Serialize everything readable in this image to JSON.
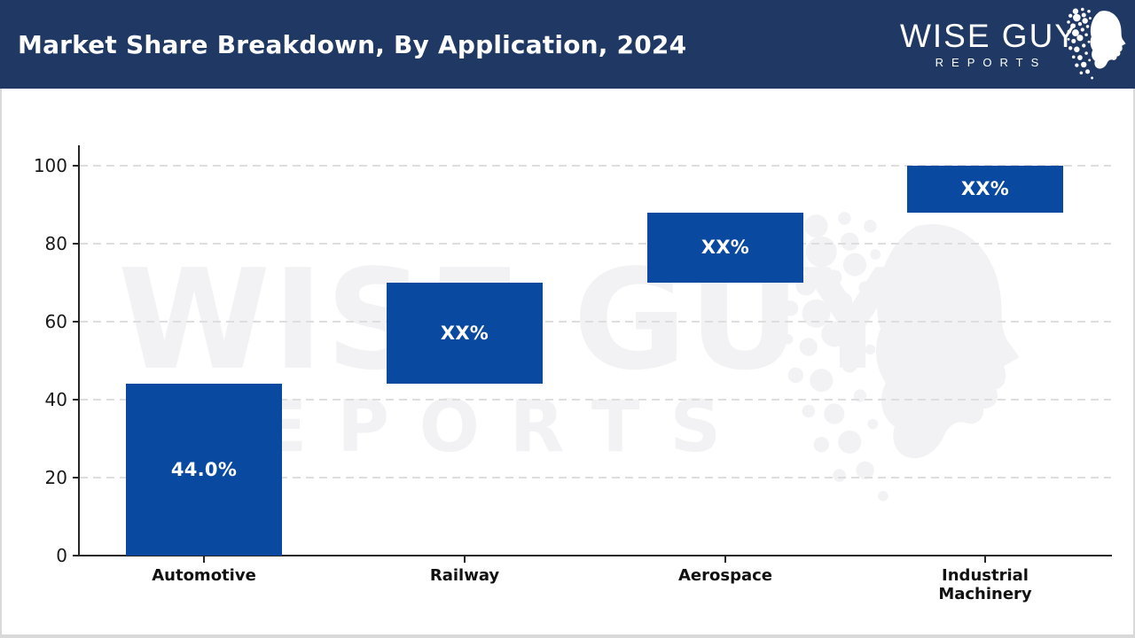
{
  "header": {
    "title": "Market Share Breakdown, By Application, 2024"
  },
  "logo": {
    "line1": "WISE GUY",
    "line2": "REPORTS"
  },
  "watermark": {
    "line1": "WISE GUY",
    "line2": "REPORTS"
  },
  "colors": {
    "header_bg": "#1f3864",
    "bar_fill": "#0a49a0",
    "bar_label": "#ffffff",
    "gridline": "#dedede",
    "axis": "#262626",
    "watermark": "#f2f2f4",
    "frame_border": "#d9d9d9"
  },
  "chart_data": {
    "type": "bar",
    "variant": "waterfall",
    "title": "Market Share Breakdown, By Application, 2024",
    "categories": [
      "Automotive",
      "Railway",
      "Aerospace",
      "Industrial Machinery"
    ],
    "segments": [
      {
        "category": "Automotive",
        "start": 0,
        "end": 44,
        "value": 44,
        "label": "44.0%"
      },
      {
        "category": "Railway",
        "start": 44,
        "end": 70,
        "value": 26,
        "label": "XX%"
      },
      {
        "category": "Aerospace",
        "start": 70,
        "end": 88,
        "value": 18,
        "label": "XX%"
      },
      {
        "category": "Industrial Machinery",
        "start": 88,
        "end": 100,
        "value": 12,
        "label": "XX%"
      }
    ],
    "xlabel": "",
    "ylabel": "",
    "yticks": [
      0,
      20,
      40,
      60,
      80,
      100
    ],
    "ylim": [
      0,
      105
    ],
    "grid": {
      "horizontal": true,
      "style": "dashed"
    },
    "legend": "none"
  }
}
